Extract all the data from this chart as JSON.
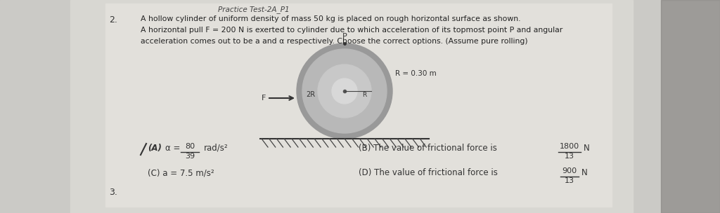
{
  "background_color": "#d8d5d0",
  "page_header": "Practice Test-2A_P1",
  "question_number": "2.",
  "question_number2": "3.",
  "body_text_line1": "A hollow cylinder of uniform density of mass 50 kg is placed on rough horizontal surface as shown.",
  "body_text_line2": "A horizontal pull F = 200 N is exerted to cylinder due to which acceleration of its topmost point P and angular",
  "body_text_line3": "acceleration comes out to be a and α respectively. Choose the correct options. (Assume pure rolling)",
  "option_A_label": "(A)",
  "option_A_alpha": "α =",
  "option_A_num": "80",
  "option_A_den": "39",
  "option_A_unit": "rad/s²",
  "option_B_text": "(B) The value of frictional force is",
  "option_B_num": "1800",
  "option_B_den": "13",
  "option_B_unit": "N",
  "option_C": "(C) a = 7.5 m/s²",
  "option_D_text": "(D) The value of frictional force is",
  "option_D_num": "900",
  "option_D_den": "13",
  "option_D_unit": "N",
  "R_outer_label": "R = 0.30 m",
  "label_2R": "2R",
  "label_R": "R",
  "label_P": "P",
  "label_F": "F"
}
